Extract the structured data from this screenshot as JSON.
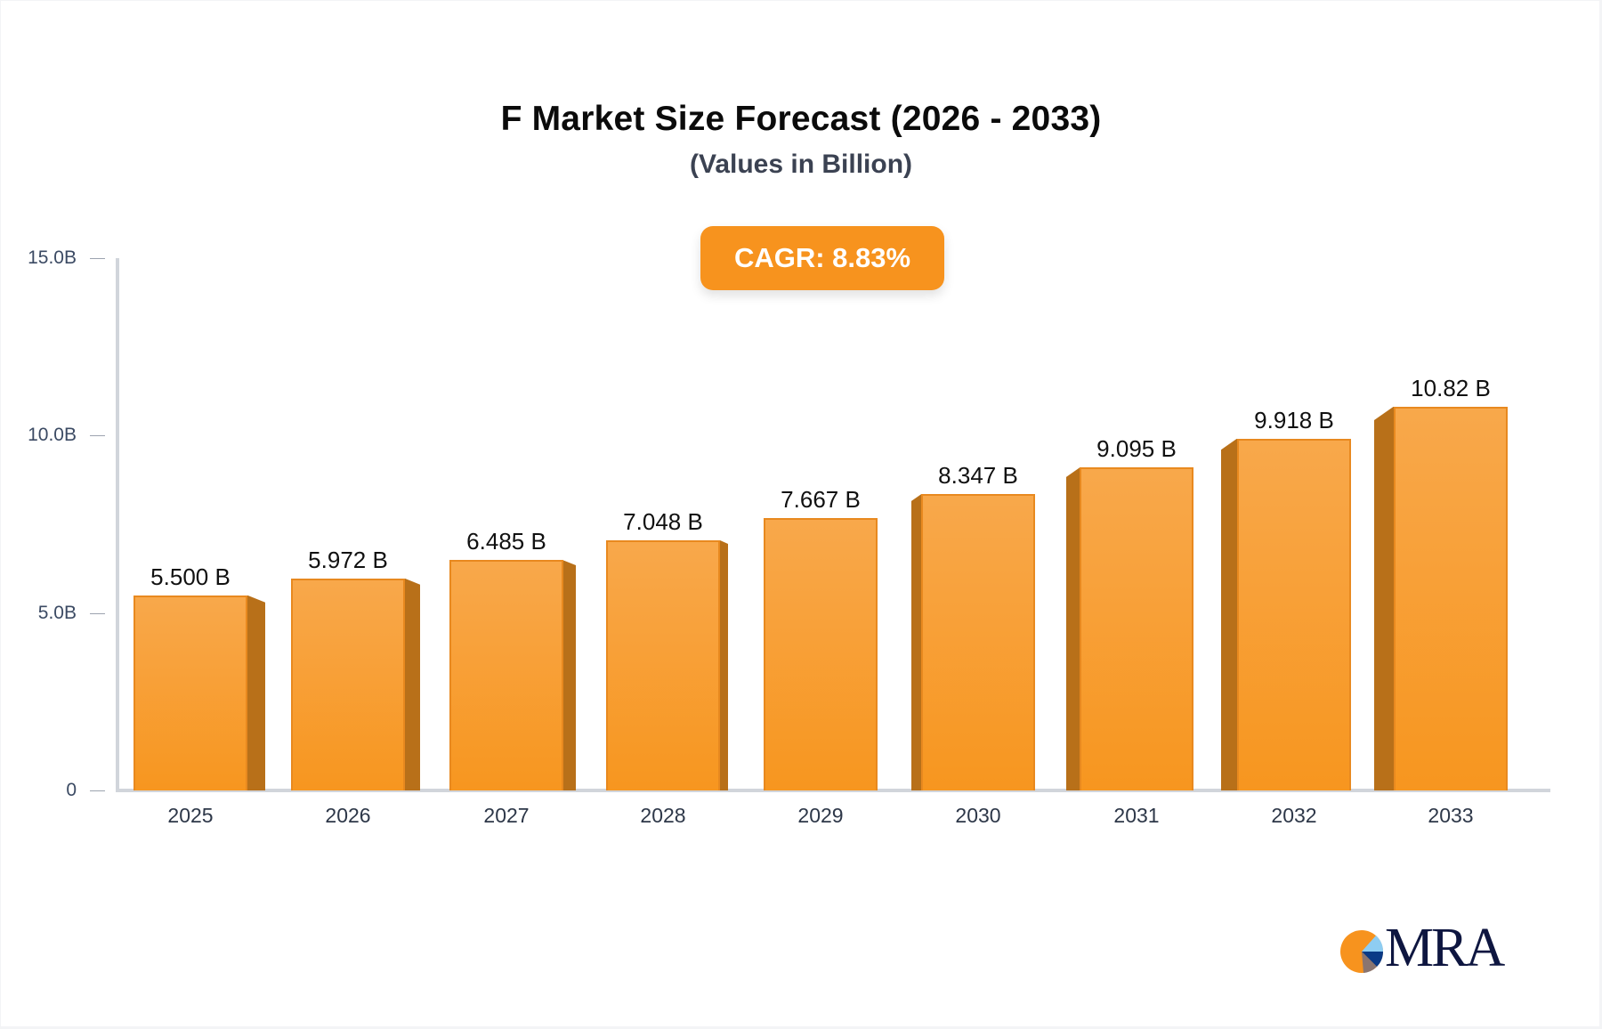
{
  "header": {
    "title": "F Market Size Forecast (2026 - 2033)",
    "subtitle": "(Values in Billion)",
    "cagr_label": "CAGR: 8.83%"
  },
  "colors": {
    "bar_front": "#f7961f",
    "bar_side": "#b87019",
    "accent": "#f7931e",
    "logo_text": "#0e1640"
  },
  "y_axis": {
    "ticks": [
      "0",
      "5.0B",
      "10.0B",
      "15.0B"
    ]
  },
  "bars": [
    {
      "year": "2025",
      "label": "5.500 B",
      "value": 5.5
    },
    {
      "year": "2026",
      "label": "5.972 B",
      "value": 5.972
    },
    {
      "year": "2027",
      "label": "6.485 B",
      "value": 6.485
    },
    {
      "year": "2028",
      "label": "7.048 B",
      "value": 7.048
    },
    {
      "year": "2029",
      "label": "7.667 B",
      "value": 7.667
    },
    {
      "year": "2030",
      "label": "8.347 B",
      "value": 8.347
    },
    {
      "year": "2031",
      "label": "9.095 B",
      "value": 9.095
    },
    {
      "year": "2032",
      "label": "9.918 B",
      "value": 9.918
    },
    {
      "year": "2033",
      "label": "10.82 B",
      "value": 10.82
    }
  ],
  "logo": {
    "text": "MRA"
  },
  "chart_data": {
    "type": "bar",
    "title": "F Market Size Forecast (2026 - 2033)",
    "subtitle": "(Values in Billion)",
    "annotation": "CAGR: 8.83%",
    "categories": [
      "2025",
      "2026",
      "2027",
      "2028",
      "2029",
      "2030",
      "2031",
      "2032",
      "2033"
    ],
    "values": [
      5.5,
      5.972,
      6.485,
      7.048,
      7.667,
      8.347,
      9.095,
      9.918,
      10.82
    ],
    "data_labels": [
      "5.500 B",
      "5.972 B",
      "6.485 B",
      "7.048 B",
      "7.667 B",
      "8.347 B",
      "9.095 B",
      "9.918 B",
      "10.82 B"
    ],
    "xlabel": "",
    "ylabel": "",
    "yticks": [
      "0",
      "5.0B",
      "10.0B",
      "15.0B"
    ],
    "ylim": [
      0,
      15
    ],
    "unit": "Billion",
    "grid": false,
    "legend": null
  }
}
